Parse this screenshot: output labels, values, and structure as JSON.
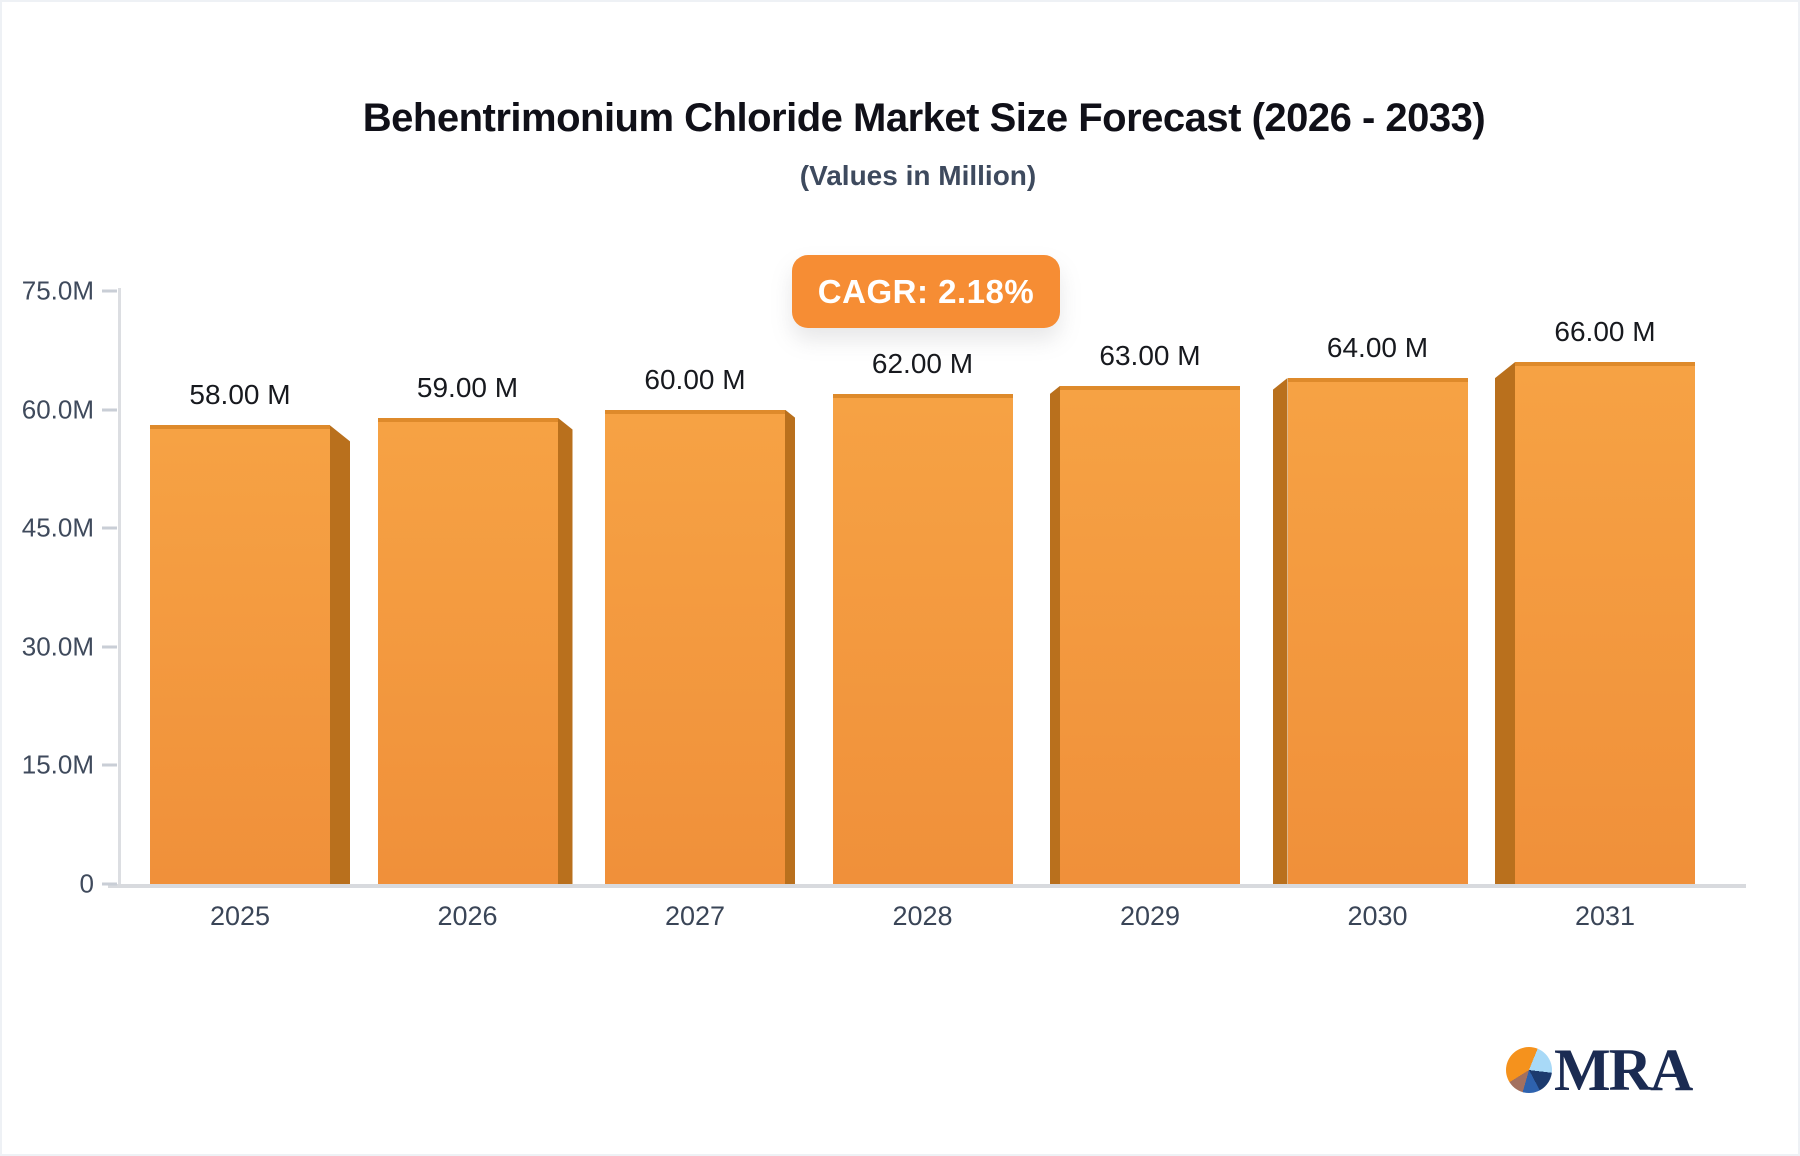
{
  "header": {
    "title": "Behentrimonium Chloride Market Size Forecast (2026 - 2033)",
    "subtitle": "(Values in Million)"
  },
  "badge": {
    "label": "CAGR: 2.18%"
  },
  "chart_data": {
    "type": "bar",
    "title": "Behentrimonium Chloride Market Size Forecast (2026 - 2033)",
    "subtitle": "(Values in Million)",
    "categories": [
      "2025",
      "2026",
      "2027",
      "2028",
      "2029",
      "2030",
      "2031"
    ],
    "values": [
      58,
      59,
      60,
      62,
      63,
      64,
      66
    ],
    "bar_labels": [
      "58.00 M",
      "59.00 M",
      "60.00 M",
      "62.00 M",
      "63.00 M",
      "64.00 M",
      "66.00 M"
    ],
    "y_ticks": [
      {
        "value": 0,
        "label": "0"
      },
      {
        "value": 15,
        "label": "15.0M"
      },
      {
        "value": 30,
        "label": "30.0M"
      },
      {
        "value": 45,
        "label": "45.0M"
      },
      {
        "value": 60,
        "label": "60.0M"
      },
      {
        "value": 75,
        "label": "75.0M"
      }
    ],
    "ylim": [
      0,
      75
    ],
    "xlabel": "",
    "ylabel": "",
    "grid": false,
    "legend": "none",
    "annotation": "CAGR: 2.18%"
  },
  "logo": {
    "text": "MRA"
  },
  "colors": {
    "bar_face": "#f49b3e",
    "bar_side": "#b9701d",
    "bar_top_edge": "#de8a2b",
    "badge_background": "#f68d34",
    "badge_text": "#ffffff",
    "axis_line": "#dcdee2",
    "axis_text": "#3f4a5c",
    "title_text": "#101018",
    "subtitle_text": "#3e4a5e",
    "logo_navy": "#1b2b52",
    "logo_orange": "#f5921d"
  }
}
